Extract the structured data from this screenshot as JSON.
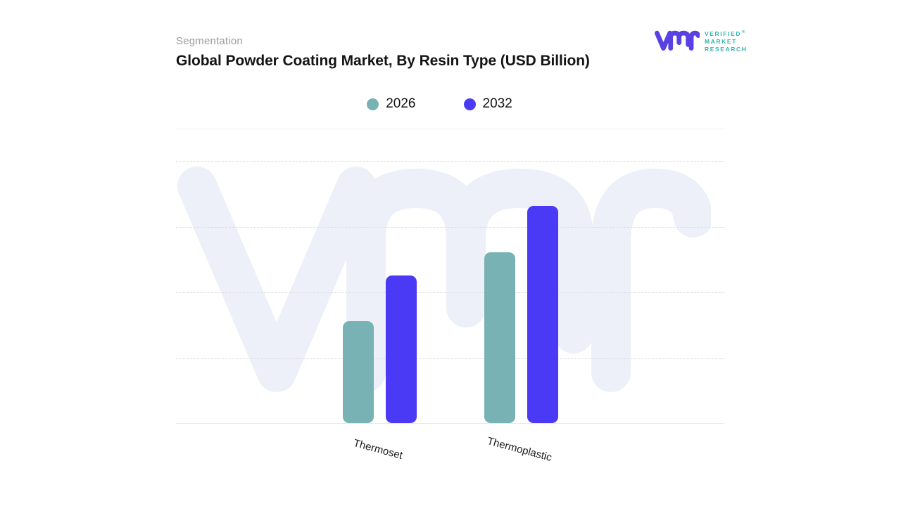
{
  "header": {
    "eyebrow": "Segmentation",
    "title": "Global Powder Coating Market, By Resin Type (USD Billion)"
  },
  "logo": {
    "monogram": "vmr",
    "line1": "VERIFIED",
    "line2": "MARKET",
    "line3": "RESEARCH",
    "registered": "®",
    "mark_color": "#5a41e2",
    "text_color": "#2fb4ae"
  },
  "colors": {
    "series_2026": "#79b2b5",
    "series_2032": "#4b3af5",
    "watermark": "#eef0f9",
    "gridline": "#dcdce4",
    "axis_line": "#e7e7ee",
    "title_text": "#141414",
    "eyebrow_text": "#9b9ba1",
    "tick_label_text": "#1c1c1c"
  },
  "chart_data": {
    "type": "bar",
    "title": "Global Powder Coating Market, By Resin Type (USD Billion)",
    "categories": [
      "Thermoset",
      "Thermoplastic"
    ],
    "series": [
      {
        "name": "2026",
        "color": "#79b2b5",
        "values": [
          1.55,
          2.6
        ]
      },
      {
        "name": "2032",
        "color": "#4b3af5",
        "values": [
          2.25,
          3.3
        ]
      }
    ],
    "xlabel": "",
    "ylabel": "",
    "ylim": [
      0,
      4.02
    ],
    "y_axis_labels_visible": false,
    "grid": "horizontal-dashed",
    "gridline_count": 4,
    "legend_position": "top-center",
    "x_tick_rotation_deg": 15,
    "watermark_text": "vmr",
    "bar_corner_radius_px": 9,
    "note": "Value axis has no numeric labels; values are estimated in gridline units (1 unit = one gridline spacing)."
  }
}
